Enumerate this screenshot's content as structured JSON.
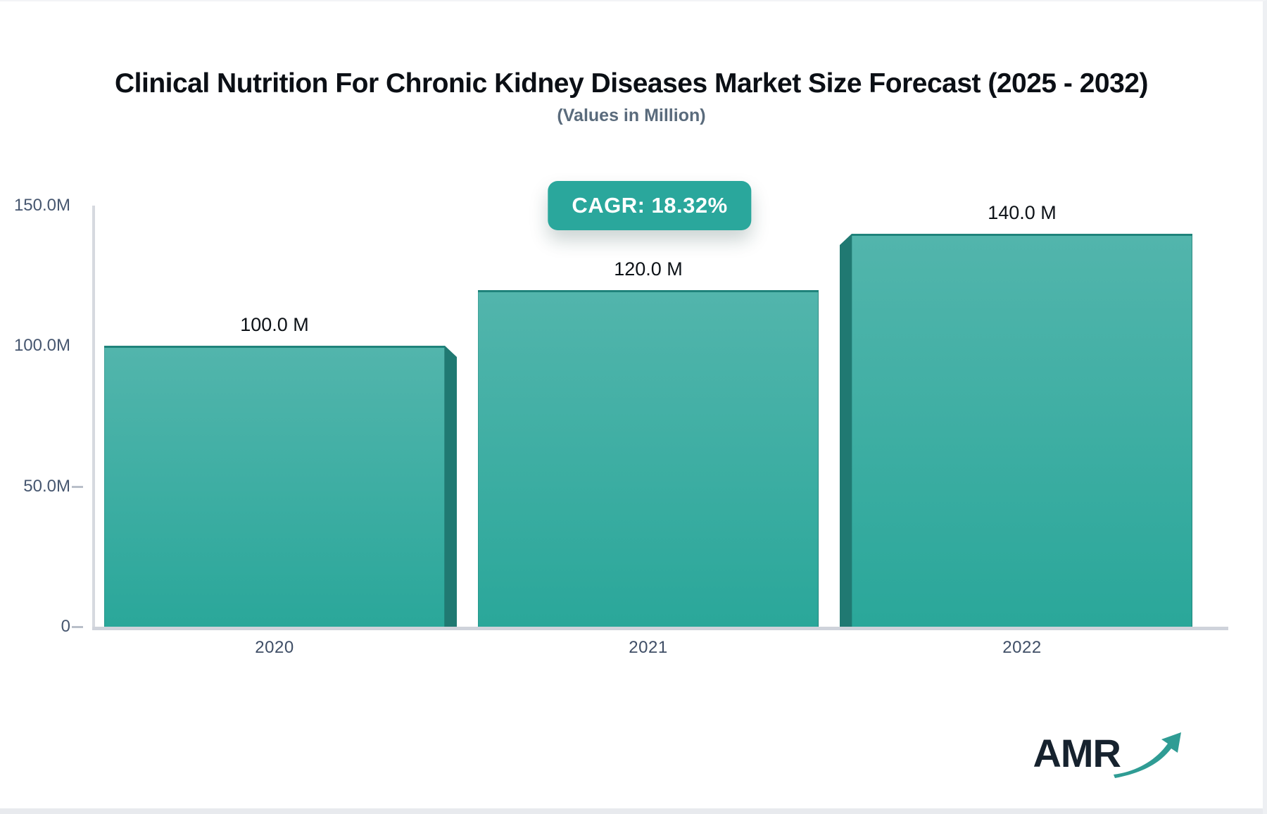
{
  "header": {
    "title": "Clinical Nutrition For Chronic Kidney Diseases Market Size Forecast (2025 - 2032)",
    "subtitle": "(Values in Million)"
  },
  "badge": {
    "label": "CAGR: 18.32%"
  },
  "chart_data": {
    "type": "bar",
    "title": "Clinical Nutrition For Chronic Kidney Diseases Market Size Forecast (2025 - 2032)",
    "subtitle": "(Values in Million)",
    "unit": "Million",
    "cagr_percent": 18.32,
    "categories": [
      "2020",
      "2021",
      "2022"
    ],
    "values": [
      100,
      120,
      140
    ],
    "value_labels": [
      "100.0 M",
      "120.0 M",
      "140.0 M"
    ],
    "ylim": [
      0,
      150
    ],
    "yticks": [
      {
        "label": "150.0M",
        "value": 150
      },
      {
        "label": "100.0M",
        "value": 100
      },
      {
        "label": "50.0M",
        "value": 50
      },
      {
        "label": "0",
        "value": 0
      }
    ],
    "grid": false,
    "legend": "none"
  },
  "logo": {
    "text": "AMR"
  },
  "colors": {
    "accent_teal": "#2aa79c",
    "bar_gradient_top": "#52b5ac",
    "bar_gradient_bottom": "#2aa79a",
    "bar_top_edge": "#1f837b",
    "bar_bevel": "#207972",
    "axis_line": "#d6d9df",
    "tick_label": "#46566f",
    "subtitle_gray": "#5a6b7c",
    "title_black": "#0b0f15",
    "logo_navy": "#16222e",
    "logo_arrow_teal": "#2f9c94"
  }
}
